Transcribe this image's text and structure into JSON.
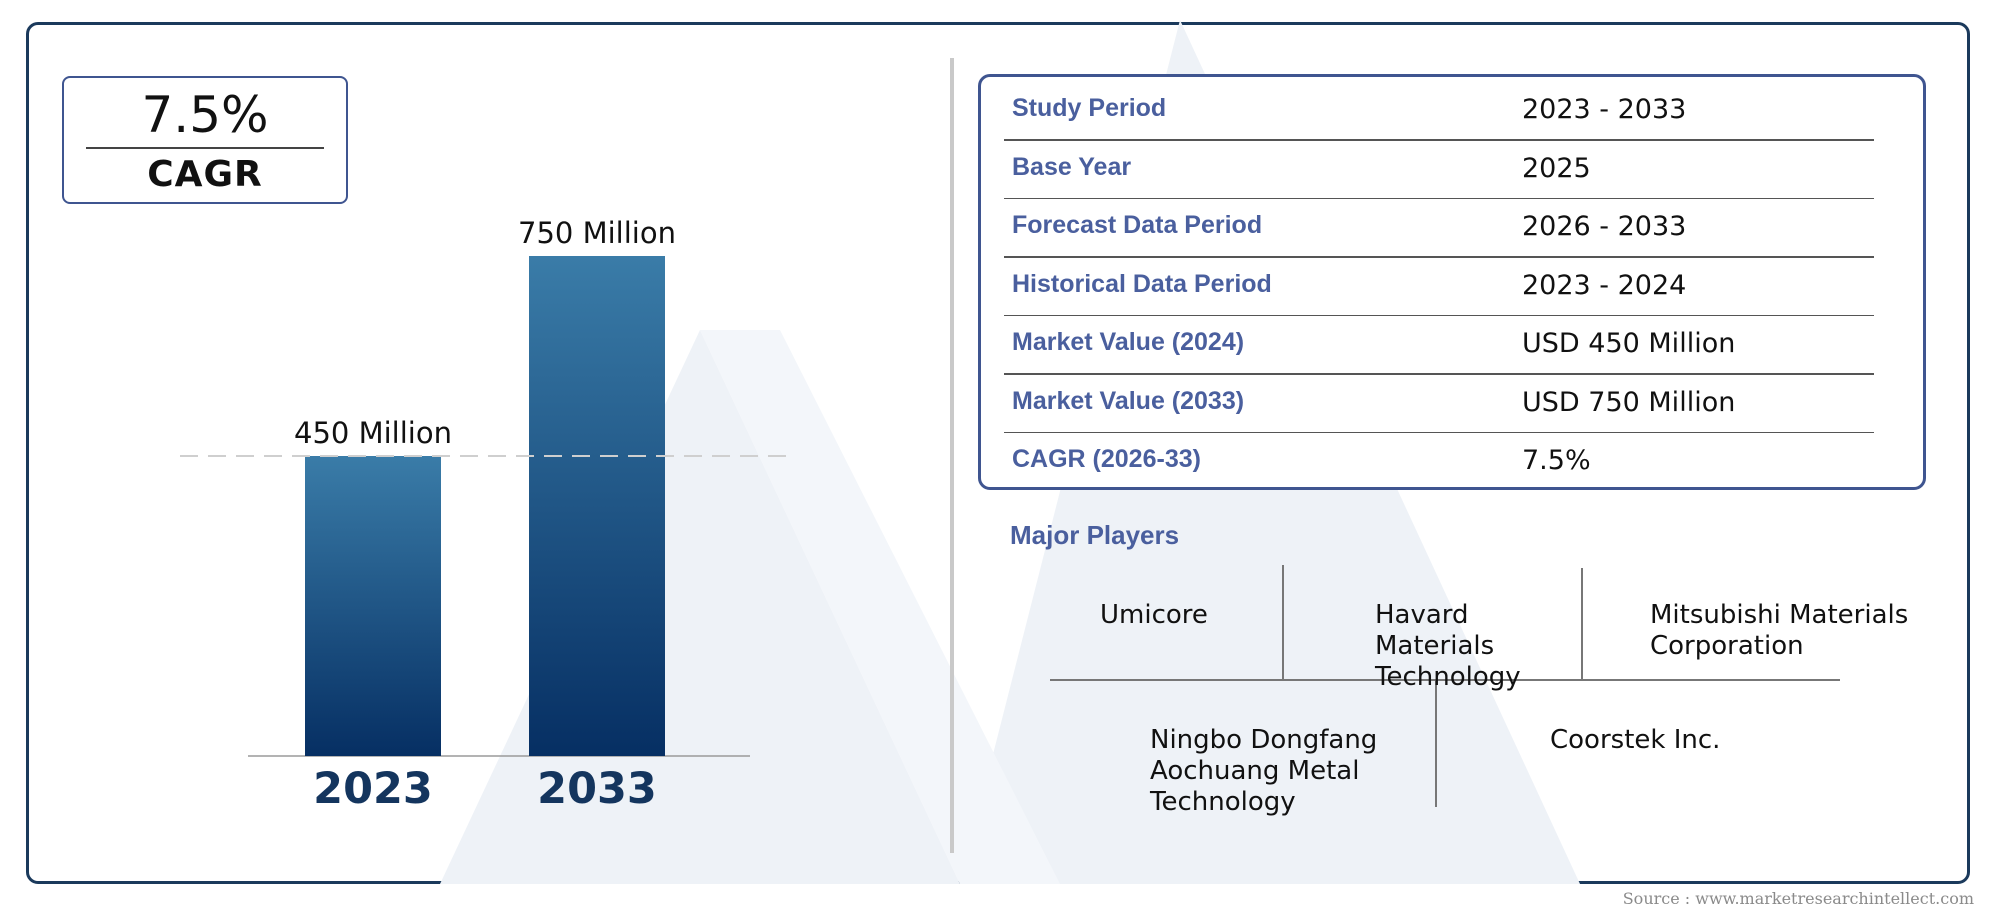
{
  "cagr_badge": {
    "value": "7.5%",
    "label": "CAGR"
  },
  "chart_data": {
    "type": "bar",
    "categories": [
      "2023",
      "2033"
    ],
    "values": [
      450,
      750
    ],
    "value_labels": [
      "450 Million",
      "750 Million"
    ],
    "unit": "Million",
    "reference_line_value": 450,
    "grid": false,
    "bar_color_top": "#3a7ca8",
    "bar_color_bottom": "#062f63",
    "category_label_color": "#14355e"
  },
  "table": {
    "rows": [
      {
        "key": "Study Period",
        "value": "2023 - 2033"
      },
      {
        "key": "Base Year",
        "value": "2025"
      },
      {
        "key": "Forecast Data Period",
        "value": "2026 - 2033"
      },
      {
        "key": "Historical Data Period",
        "value": "2023 - 2024"
      },
      {
        "key": "Market Value (2024)",
        "value": "USD 450 Million"
      },
      {
        "key": "Market Value (2033)",
        "value": "USD 750 Million"
      },
      {
        "key": "CAGR (2026-33)",
        "value": "7.5%"
      }
    ]
  },
  "players": {
    "title": "Major Players",
    "items": [
      "Umicore",
      "Havard\nMaterials\nTechnology",
      "Mitsubishi Materials\nCorporation",
      "Ningbo Dongfang\nAochuang Metal\nTechnology",
      "Coorstek Inc."
    ]
  },
  "source": "Source : www.marketresearchintellect.com",
  "colors": {
    "accent": "#4a5f9e",
    "frame": "#1b3a5c",
    "box_border": "#3f5590"
  }
}
